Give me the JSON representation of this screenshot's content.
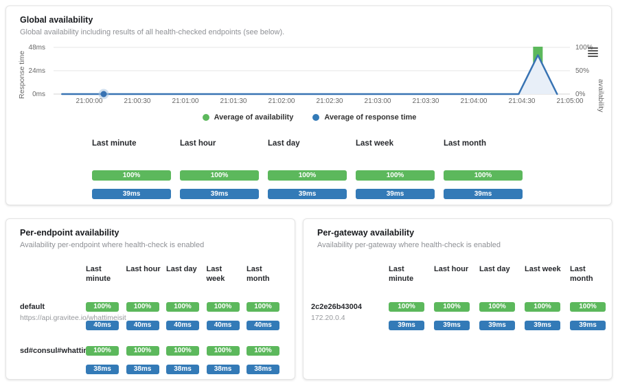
{
  "colors": {
    "green": "#5cb85c",
    "blue": "#337ab7",
    "line": "#3873b3",
    "area": "#e8eff8",
    "halo": "#aac6e2",
    "grid": "#e6e6e6",
    "axis_line": "#d0d0d0",
    "tick_text": "#666666"
  },
  "global": {
    "title": "Global availability",
    "subtitle": "Global availability including results of all health-checked endpoints (see below).",
    "legend": [
      {
        "label": "Average of availability",
        "color": "#5cb85c"
      },
      {
        "label": "Average of response time",
        "color": "#337ab7"
      }
    ],
    "summary": {
      "columns": [
        "Last minute",
        "Last hour",
        "Last day",
        "Last week",
        "Last month"
      ],
      "availability": [
        "100%",
        "100%",
        "100%",
        "100%",
        "100%"
      ],
      "response_time": [
        "39ms",
        "39ms",
        "39ms",
        "39ms",
        "39ms"
      ]
    }
  },
  "chart_data": {
    "type": "line",
    "x_ticks": [
      "21:00:00",
      "21:00:30",
      "21:01:00",
      "21:01:30",
      "21:02:00",
      "21:02:30",
      "21:03:00",
      "21:03:30",
      "21:04:00",
      "21:04:30",
      "21:05:00"
    ],
    "y_left": {
      "title": "Response time",
      "ticks": [
        "0ms",
        "24ms",
        "48ms"
      ],
      "max": 48
    },
    "y_right": {
      "title": "availability",
      "ticks": [
        "0%",
        "50%",
        "100%"
      ],
      "max": 100
    },
    "grid": true,
    "legend_position": "bottom",
    "series": [
      {
        "name": "Average of availability",
        "type": "column",
        "axis": "right",
        "color": "#5cb85c",
        "points": [
          {
            "time": "21:04:40",
            "value": 100
          }
        ]
      },
      {
        "name": "Average of response time",
        "type": "line",
        "axis": "left",
        "color": "#3873b3",
        "points": [
          {
            "time": "20:59:43",
            "value": 0
          },
          {
            "time": "21:04:28",
            "value": 0
          },
          {
            "time": "21:04:40",
            "value": 40
          },
          {
            "time": "21:04:52",
            "value": 0
          }
        ],
        "marker": {
          "time": "21:00:09",
          "value": 0
        }
      }
    ]
  },
  "endpoints": {
    "title": "Per-endpoint availability",
    "subtitle": "Availability per-endpoint where health-check is enabled",
    "columns": [
      "Last minute",
      "Last hour",
      "Last day",
      "Last week",
      "Last month"
    ],
    "rows": [
      {
        "name": "default",
        "detail": "https://api.gravitee.io/whattimeisit",
        "availability": [
          "100%",
          "100%",
          "100%",
          "100%",
          "100%"
        ],
        "response_time": [
          "40ms",
          "40ms",
          "40ms",
          "40ms",
          "40ms"
        ]
      },
      {
        "name": "sd#consul#whattimeisit",
        "detail": "",
        "availability": [
          "100%",
          "100%",
          "100%",
          "100%",
          "100%"
        ],
        "response_time": [
          "38ms",
          "38ms",
          "38ms",
          "38ms",
          "38ms"
        ]
      }
    ]
  },
  "gateways": {
    "title": "Per-gateway availability",
    "subtitle": "Availability per-gateway where health-check is enabled",
    "columns": [
      "Last minute",
      "Last hour",
      "Last day",
      "Last week",
      "Last month"
    ],
    "rows": [
      {
        "name": "2c2e26b43004",
        "detail": "172.20.0.4",
        "availability": [
          "100%",
          "100%",
          "100%",
          "100%",
          "100%"
        ],
        "response_time": [
          "39ms",
          "39ms",
          "39ms",
          "39ms",
          "39ms"
        ]
      }
    ]
  }
}
